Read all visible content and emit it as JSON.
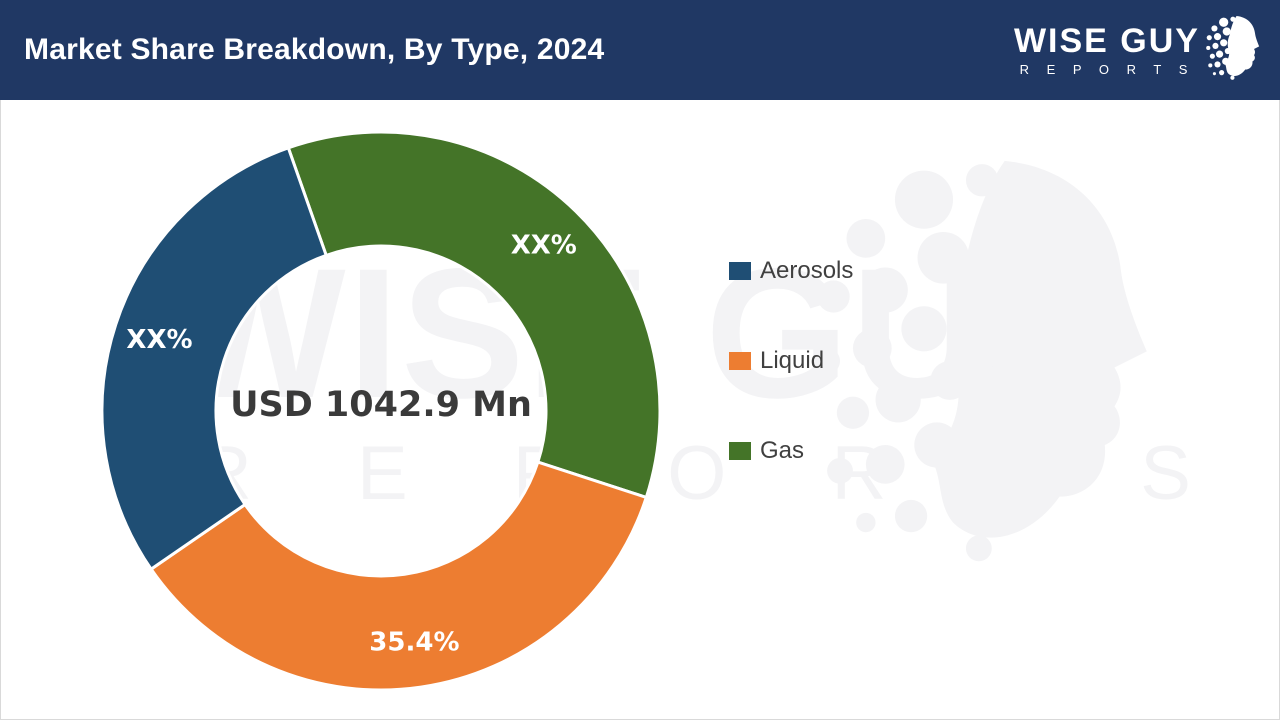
{
  "header": {
    "title": "Market Share Breakdown, By Type, 2024",
    "bg_color": "#203864",
    "logo": {
      "name": "WISE GUY",
      "tagline": "R E P O R T S"
    }
  },
  "watermark": {
    "word1": "WISE GUY",
    "word2": "R E P O R T S"
  },
  "chart_data": {
    "type": "pie",
    "variant": "donut",
    "title": "Market Share Breakdown, By Type, 2024",
    "center_label": "USD 1042.9 Mn",
    "start_angle_deg": -19.4,
    "rotation": "clockwise",
    "segments": [
      {
        "name": "Gas",
        "displayed_label": "XX%",
        "value_pct": 35.4,
        "color": "#447428"
      },
      {
        "name": "Liquid",
        "displayed_label": "35.4%",
        "value_pct": 35.4,
        "color": "#ed7d31"
      },
      {
        "name": "Aerosols",
        "displayed_label": "XX%",
        "value_pct": 29.2,
        "color": "#1f4e74"
      }
    ],
    "legend": [
      {
        "label": "Aerosols",
        "color": "#1f4e74"
      },
      {
        "label": "Liquid",
        "color": "#ed7d31"
      },
      {
        "label": "Gas",
        "color": "#447428"
      }
    ],
    "legend_position": "right",
    "gridlines": false
  }
}
